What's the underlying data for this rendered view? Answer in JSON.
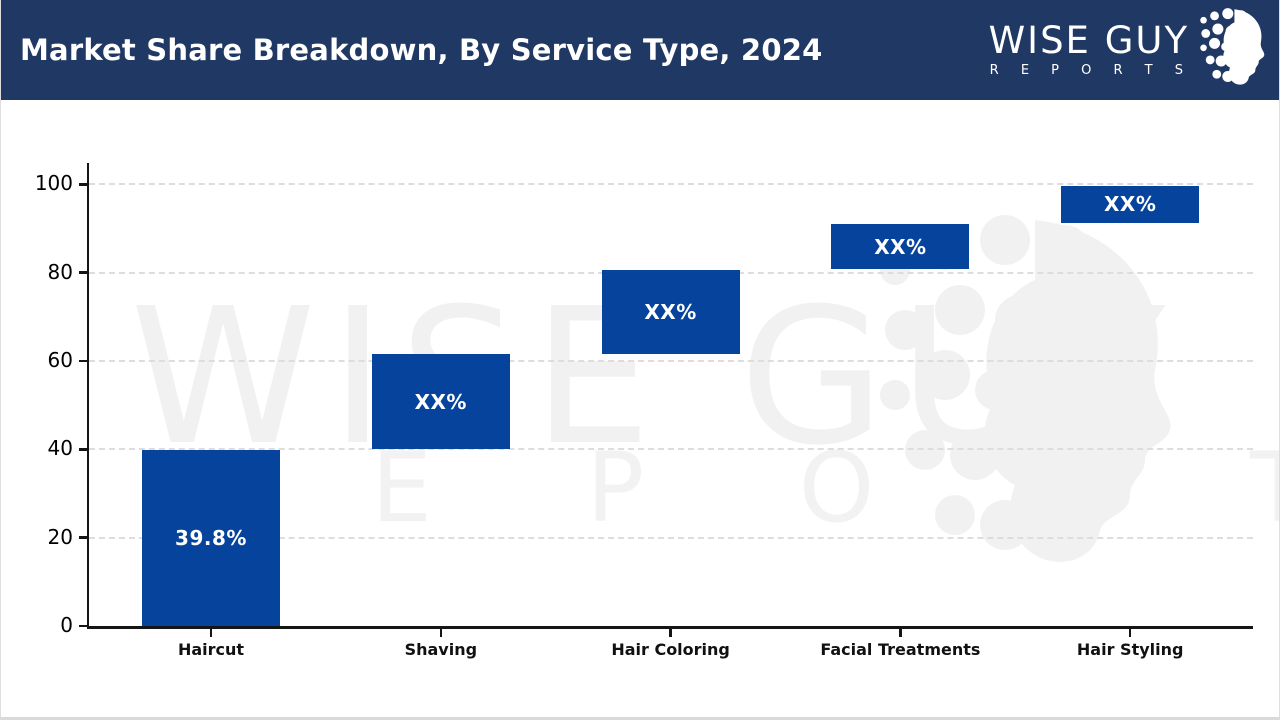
{
  "header": {
    "title": "Market Share Breakdown, By Service Type, 2024",
    "logo": {
      "wordmark": "WISE GUY",
      "tagline": "R E P O R T S"
    }
  },
  "watermark": {
    "line1": "WISE GUY",
    "line2": "R E P O R T S"
  },
  "chart_data": {
    "type": "bar",
    "variant": "waterfall",
    "title": "Market Share Breakdown, By Service Type, 2024",
    "xlabel": "",
    "ylabel": "",
    "categories": [
      "Haircut",
      "Shaving",
      "Hair Coloring",
      "Facial Treatments",
      "Hair Styling"
    ],
    "segments": [
      {
        "category": "Haircut",
        "start": 0,
        "end": 39.8,
        "value": 39.8,
        "label": "39.8%"
      },
      {
        "category": "Shaving",
        "start": 40.0,
        "end": 61.6,
        "value": 21.6,
        "label": "XX%"
      },
      {
        "category": "Hair Coloring",
        "start": 61.6,
        "end": 80.6,
        "value": 19.0,
        "label": "XX%"
      },
      {
        "category": "Facial Treatments",
        "start": 80.8,
        "end": 91.0,
        "value": 10.2,
        "label": "XX%"
      },
      {
        "category": "Hair Styling",
        "start": 91.2,
        "end": 99.7,
        "value": 8.5,
        "label": "XX%"
      }
    ],
    "yticks": [
      0,
      20,
      40,
      60,
      80,
      100
    ],
    "ylim": [
      0,
      104.5
    ],
    "grid": "horizontal-dashed",
    "legend": "none",
    "colors": {
      "bar": "#05439c",
      "bar_label": "#ffffff",
      "axis": "#151515",
      "gridline": "#dddddd",
      "tick_label": "#000000",
      "category_label": "#111111"
    }
  },
  "colors": {
    "header_bg": "#203864",
    "page_bg": "#ffffff",
    "watermark": "#f1f1f1",
    "border": "#d9d9d9"
  }
}
